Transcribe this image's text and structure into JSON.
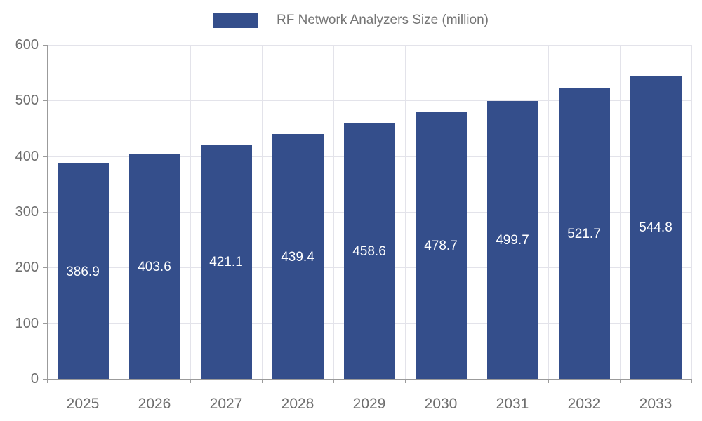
{
  "chart_data": {
    "type": "bar",
    "title": "RF Network Analyzers Size (million)",
    "categories": [
      "2025",
      "2026",
      "2027",
      "2028",
      "2029",
      "2030",
      "2031",
      "2032",
      "2033"
    ],
    "values": [
      386.9,
      403.6,
      421.1,
      439.4,
      458.6,
      478.7,
      499.7,
      521.7,
      544.8
    ],
    "xlabel": "",
    "ylabel": "",
    "ylim": [
      0,
      600
    ],
    "ytick_step": 100,
    "ytick_labels": [
      "0",
      "100",
      "200",
      "300",
      "400",
      "500",
      "600"
    ],
    "grid": true,
    "legend_position": "top-center",
    "value_labels": "inside-center"
  },
  "colors": {
    "bar": "#344e8b",
    "legend_text": "#757575",
    "axis_line": "#9b9b9b",
    "tick_label": "#6e6e6e",
    "gridline": "#e3e3ea",
    "value_label": "#ffffff",
    "background": "#ffffff"
  }
}
